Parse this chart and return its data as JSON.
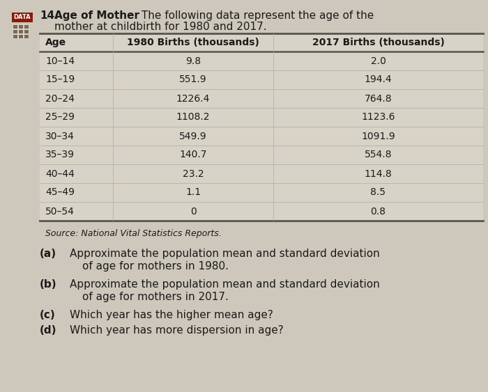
{
  "problem_number": "14.",
  "title_bold": "Age of Mother",
  "title_rest": " The following data represent the age of the",
  "title_line2": "mother at childbirth for 1980 and 2017.",
  "col_headers": [
    "Age",
    "1980 Births (thousands)",
    "2017 Births (thousands)"
  ],
  "rows": [
    [
      "10–14",
      "9.8",
      "2.0"
    ],
    [
      "15–19",
      "551.9",
      "194.4"
    ],
    [
      "20–24",
      "1226.4",
      "764.8"
    ],
    [
      "25–29",
      "1108.2",
      "1123.6"
    ],
    [
      "30–34",
      "549.9",
      "1091.9"
    ],
    [
      "35–39",
      "140.7",
      "554.8"
    ],
    [
      "40–44",
      "23.2",
      "114.8"
    ],
    [
      "45–49",
      "1.1",
      "8.5"
    ],
    [
      "50–54",
      "0",
      "0.8"
    ]
  ],
  "source_text": "Source: National Vital Statistics Reports.",
  "questions": [
    [
      "(a)",
      "Approximate the population mean and standard deviation",
      "of age for mothers in 1980."
    ],
    [
      "(b)",
      "Approximate the population mean and standard deviation",
      "of age for mothers in 2017."
    ],
    [
      "(c)",
      "Which year has the higher mean age?",
      ""
    ],
    [
      "(d)",
      "Which year has more dispersion in age?",
      ""
    ]
  ],
  "bg_color": "#cdc8bb",
  "table_bg": "#d8d3c7",
  "text_color": "#1a1a1a",
  "icon_red": "#8b1a0a",
  "icon_grid": "#7a6a55",
  "title_fontsize": 11,
  "table_fontsize": 10,
  "source_fontsize": 9,
  "question_fontsize": 11
}
